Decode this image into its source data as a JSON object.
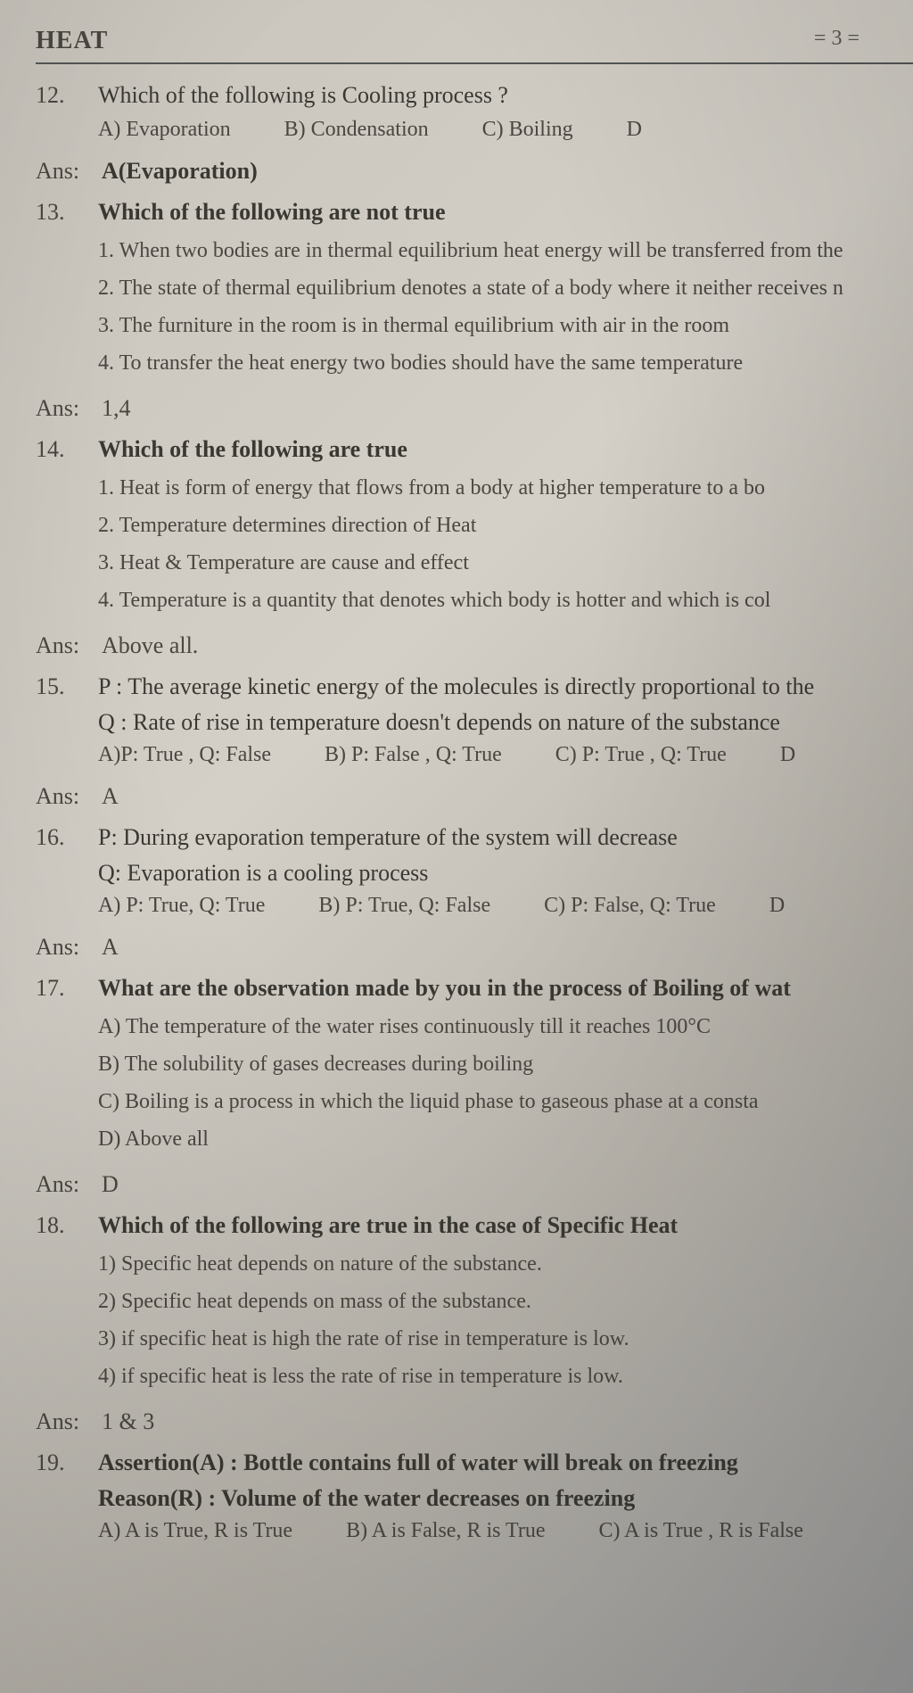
{
  "header": {
    "left": "HEAT",
    "right": "= 3 ="
  },
  "q12": {
    "num": "12.",
    "text": "Which of the following is Cooling process ?",
    "optA": "A) Evaporation",
    "optB": "B) Condensation",
    "optC": "C) Boiling",
    "optD": "D",
    "ansLabel": "Ans:",
    "ansVal": "A(Evaporation)"
  },
  "q13": {
    "num": "13.",
    "text": "Which of the following are not true",
    "s1": "1. When two bodies are in thermal equilibrium heat energy will be transferred from the",
    "s2": "2. The state of thermal equilibrium denotes a state of a body where it neither receives n",
    "s3": "3. The furniture in the room is in thermal equilibrium with air in the room",
    "s4": "4. To transfer the heat energy two bodies should have the same temperature",
    "ansLabel": "Ans:",
    "ansVal": "1,4"
  },
  "q14": {
    "num": "14.",
    "text": "Which of the following are true",
    "s1": "1. Heat is form of energy that flows from a body at higher temperature to a bo",
    "s2": "2. Temperature determines direction of Heat",
    "s3": "3. Heat & Temperature are cause and effect",
    "s4": "4. Temperature is a quantity that denotes which body is hotter and which is col",
    "ansLabel": "Ans:",
    "ansVal": "Above all."
  },
  "q15": {
    "num": "15.",
    "p": "P : The average kinetic energy of the molecules is directly proportional to the",
    "q": "Q : Rate of rise in temperature doesn't depends on nature of the substance",
    "optA": "A)P: True , Q: False",
    "optB": "B) P: False , Q: True",
    "optC": "C) P: True , Q: True",
    "optD": "D",
    "ansLabel": "Ans:",
    "ansVal": "A"
  },
  "q16": {
    "num": "16.",
    "p": "P: During evaporation temperature of the system will decrease",
    "q": "Q: Evaporation is a cooling process",
    "optA": "A) P: True, Q: True",
    "optB": "B) P: True, Q: False",
    "optC": "C) P: False, Q: True",
    "optD": "D",
    "ansLabel": "Ans:",
    "ansVal": "A"
  },
  "q17": {
    "num": "17.",
    "text": "What are the observation made by you in the process of Boiling of wat",
    "sA": "A) The temperature of the water rises continuously till it reaches 100°C",
    "sB": "B) The solubility of gases decreases during boiling",
    "sC": "C) Boiling is a process in which the liquid phase to gaseous phase at a consta",
    "sD": "D) Above all",
    "ansLabel": "Ans:",
    "ansVal": "D"
  },
  "q18": {
    "num": "18.",
    "text": "Which of the following are true in the case of Specific Heat",
    "s1": "1) Specific heat depends on nature of the substance.",
    "s2": "2) Specific heat depends on mass of the substance.",
    "s3": "3) if specific heat is high the rate of rise in temperature is low.",
    "s4": "4) if specific heat is less the rate of rise in temperature is low.",
    "ansLabel": "Ans:",
    "ansVal": "1 & 3"
  },
  "q19": {
    "num": "19.",
    "assertion": "Assertion(A) :  Bottle contains full of water will break on freezing",
    "reason": "Reason(R) :  Volume of the water decreases on freezing",
    "optA": "A) A is True, R is True",
    "optB": "B) A is False, R is True",
    "optC": "C) A is True , R is False"
  }
}
